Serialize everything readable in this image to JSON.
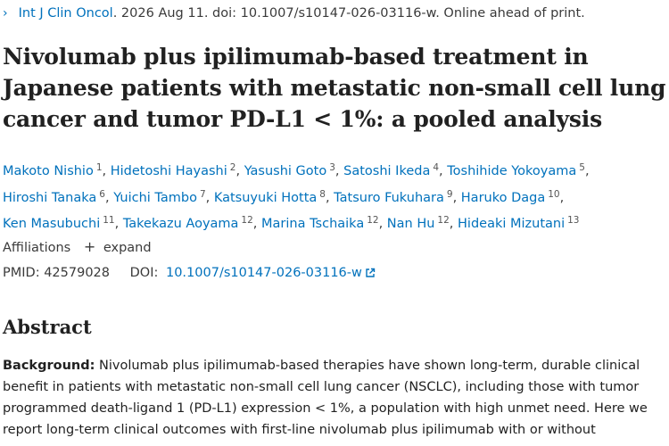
{
  "citation": {
    "journal": "Int J Clin Oncol",
    "details": ". 2026 Aug 11. doi: 10.1007/s10147-026-03116-w. Online ahead of print."
  },
  "article": {
    "title": "Nivolumab plus ipilimumab-based treatment in Japanese patients with metastatic non-small cell lung cancer and tumor PD-L1 < 1%: a pooled analysis"
  },
  "authors": [
    {
      "name": "Makoto Nishio",
      "aff": "1"
    },
    {
      "name": "Hidetoshi Hayashi",
      "aff": "2"
    },
    {
      "name": "Yasushi Goto",
      "aff": "3"
    },
    {
      "name": "Satoshi Ikeda",
      "aff": "4"
    },
    {
      "name": "Toshihide Yokoyama",
      "aff": "5"
    },
    {
      "name": "Hiroshi Tanaka",
      "aff": "6"
    },
    {
      "name": "Yuichi Tambo",
      "aff": "7"
    },
    {
      "name": "Katsuyuki Hotta",
      "aff": "8"
    },
    {
      "name": "Tatsuro Fukuhara",
      "aff": "9"
    },
    {
      "name": "Haruko Daga",
      "aff": "10"
    },
    {
      "name": "Ken Masubuchi",
      "aff": "11"
    },
    {
      "name": "Takekazu Aoyama",
      "aff": "12"
    },
    {
      "name": "Marina Tschaika",
      "aff": "12"
    },
    {
      "name": "Nan Hu",
      "aff": "12"
    },
    {
      "name": "Hideaki Mizutani",
      "aff": "13"
    }
  ],
  "affiliations": {
    "label": "Affiliations",
    "expand_label": "expand"
  },
  "identifiers": {
    "pmid_label": "PMID:",
    "pmid": "42579028",
    "doi_label": "DOI:",
    "doi": "10.1007/s10147-026-03116-w"
  },
  "abstract": {
    "heading": "Abstract",
    "background_label": "Background:",
    "background_text": "Nivolumab plus ipilimumab-based therapies have shown long-term, durable clinical benefit in patients with metastatic non-small cell lung cancer (NSCLC), including those with tumor programmed death-ligand 1 (PD-L1) expression < 1%, a population with high unmet need. Here we report long-term clinical outcomes with first-line nivolumab plus ipilimumab with or without"
  },
  "colors": {
    "link": "#0071bc",
    "text": "#212121"
  }
}
